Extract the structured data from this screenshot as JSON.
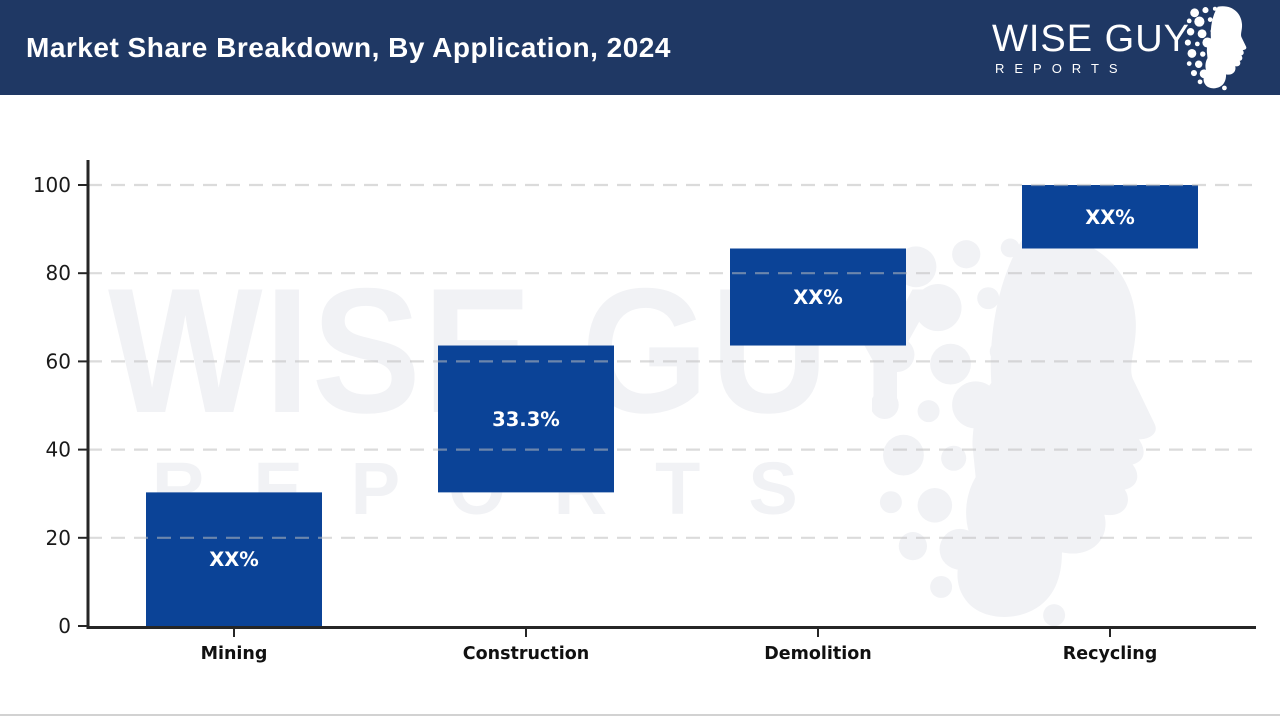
{
  "header": {
    "title": "Market Share Breakdown, By Application, 2024",
    "logo": {
      "line1": "WISE GUY",
      "line2": "REPORTS"
    }
  },
  "watermark": {
    "line1": "WISE GUY",
    "line2": "REPORTS"
  },
  "chart_data": {
    "type": "bar",
    "variant": "waterfall",
    "title": "Market Share Breakdown, By Application, 2024",
    "xlabel": "",
    "ylabel": "",
    "categories": [
      "Mining",
      "Construction",
      "Demolition",
      "Recycling"
    ],
    "segments": [
      {
        "category": "Mining",
        "start": 0,
        "end": 30.3,
        "label": "XX%"
      },
      {
        "category": "Construction",
        "start": 30.3,
        "end": 63.6,
        "label": "33.3%"
      },
      {
        "category": "Demolition",
        "start": 63.6,
        "end": 85.6,
        "label": "XX%"
      },
      {
        "category": "Recycling",
        "start": 85.6,
        "end": 100,
        "label": "XX%"
      }
    ],
    "yticks": [
      0,
      20,
      40,
      60,
      80,
      100
    ],
    "ylim": [
      0,
      105
    ],
    "grid": "horizontal-dashed",
    "legend": "none",
    "bar_color": "#0b4397",
    "bar_label_color": "#ffffff"
  },
  "colors": {
    "header_bg": "#1f3864",
    "bar": "#0b4397",
    "grid": "#bdbdbd",
    "axis": "#262626",
    "tick_label": "#1a1a1a",
    "watermark": "#f1f2f5"
  }
}
